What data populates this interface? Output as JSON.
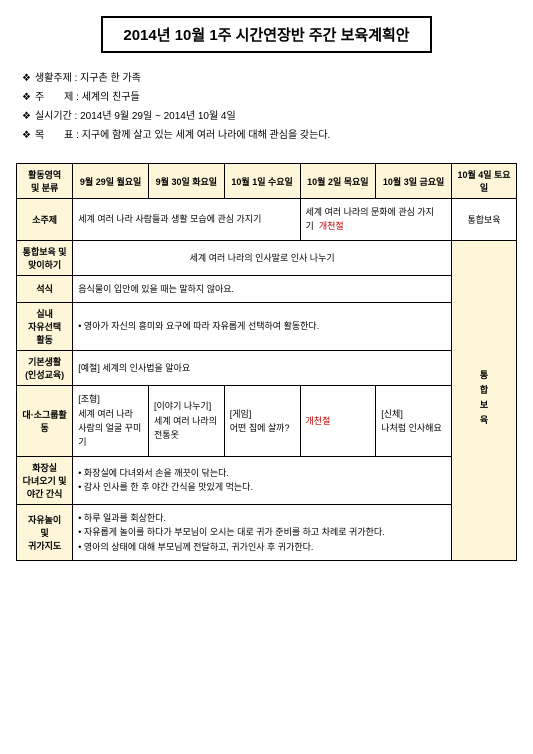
{
  "title": "2014년 10월 1주 시간연장반 주간 보육계획안",
  "info": {
    "lifeTopicLabel": "생활주제 :",
    "lifeTopic": "지구촌 한 가족",
    "topicLabel": "주　　제 :",
    "topic": "세계의 친구들",
    "periodLabel": "실시기간 :",
    "period": "2014년 9월 29일 ~ 2014년 10월 4일",
    "goalLabel": "목　　표 :",
    "goal": "지구에 함께 살고 있는 세계 여러 나라에 대해 관심을 갖는다."
  },
  "diamond": "❖",
  "header": {
    "area": "활동영역\n및 분류",
    "d0": "9월 29일 월요일",
    "d1": "9월 30일 화요일",
    "d2": "10월 1일 수요일",
    "d3": "10월 2일 목요일",
    "d4": "10월 3일 금요일",
    "d5": "10월 4일 토요일"
  },
  "rows": {
    "subtopic": {
      "label": "소주제",
      "val1": "세계 여러 나라 사람들과 생활 모습에 관심 가지기",
      "val2a": "세계 여러 나라의 문화에 관심 가지기",
      "val2b": "개천절",
      "sat": "통합보육",
      "satSide": "통합보육"
    },
    "integrate": {
      "label": "통합보육 및\n맞이하기",
      "val": "세계 여러 나라의 인사말로 인사 나누기"
    },
    "snack": {
      "label": "석식",
      "val": "음식물이 입안에 있을 때는 말하지 않아요."
    },
    "indoor": {
      "label": "실내\n자유선택\n활동",
      "val": "• 영아가 자신의 흥미와 요구에 따라 자유롭게 선택하여 활동한다."
    },
    "basic": {
      "label": "기본생활\n(인성교육)",
      "val": "[예절] 세계의 인사법을 알아요"
    },
    "group": {
      "label": "대·소그룹활동",
      "c0a": "[조형]",
      "c0b": "세계 여러 나라 사람의 얼굴 꾸미기",
      "c1a": "[이야기 나누기]",
      "c1b": "세계 여러 나라의 전통옷",
      "c2a": "[게임]",
      "c2b": "어떤 집에 살까?",
      "c3": "개천절",
      "c4a": "[신체]",
      "c4b": "나처럼 인사해요"
    },
    "toilet": {
      "label": "화장실\n다녀오기 및\n야간 간식",
      "val1": "• 화장실에 다녀와서 손을 깨끗이 닦는다.",
      "val2": "• 감사 인사를 한 후 야간 간식을 맛있게 먹는다."
    },
    "free": {
      "label": "자유놀이\n및\n귀가지도",
      "val1": "• 하루 일과를 회상한다.",
      "val2": "• 자유롭게 놀이를 하다가 부모님이 오시는 대로 귀가 준비를 하고 차례로 귀가한다.",
      "val3": "• 영아의 상태에 대해 부모님께 전달하고, 귀가인사 후 귀가한다."
    }
  }
}
